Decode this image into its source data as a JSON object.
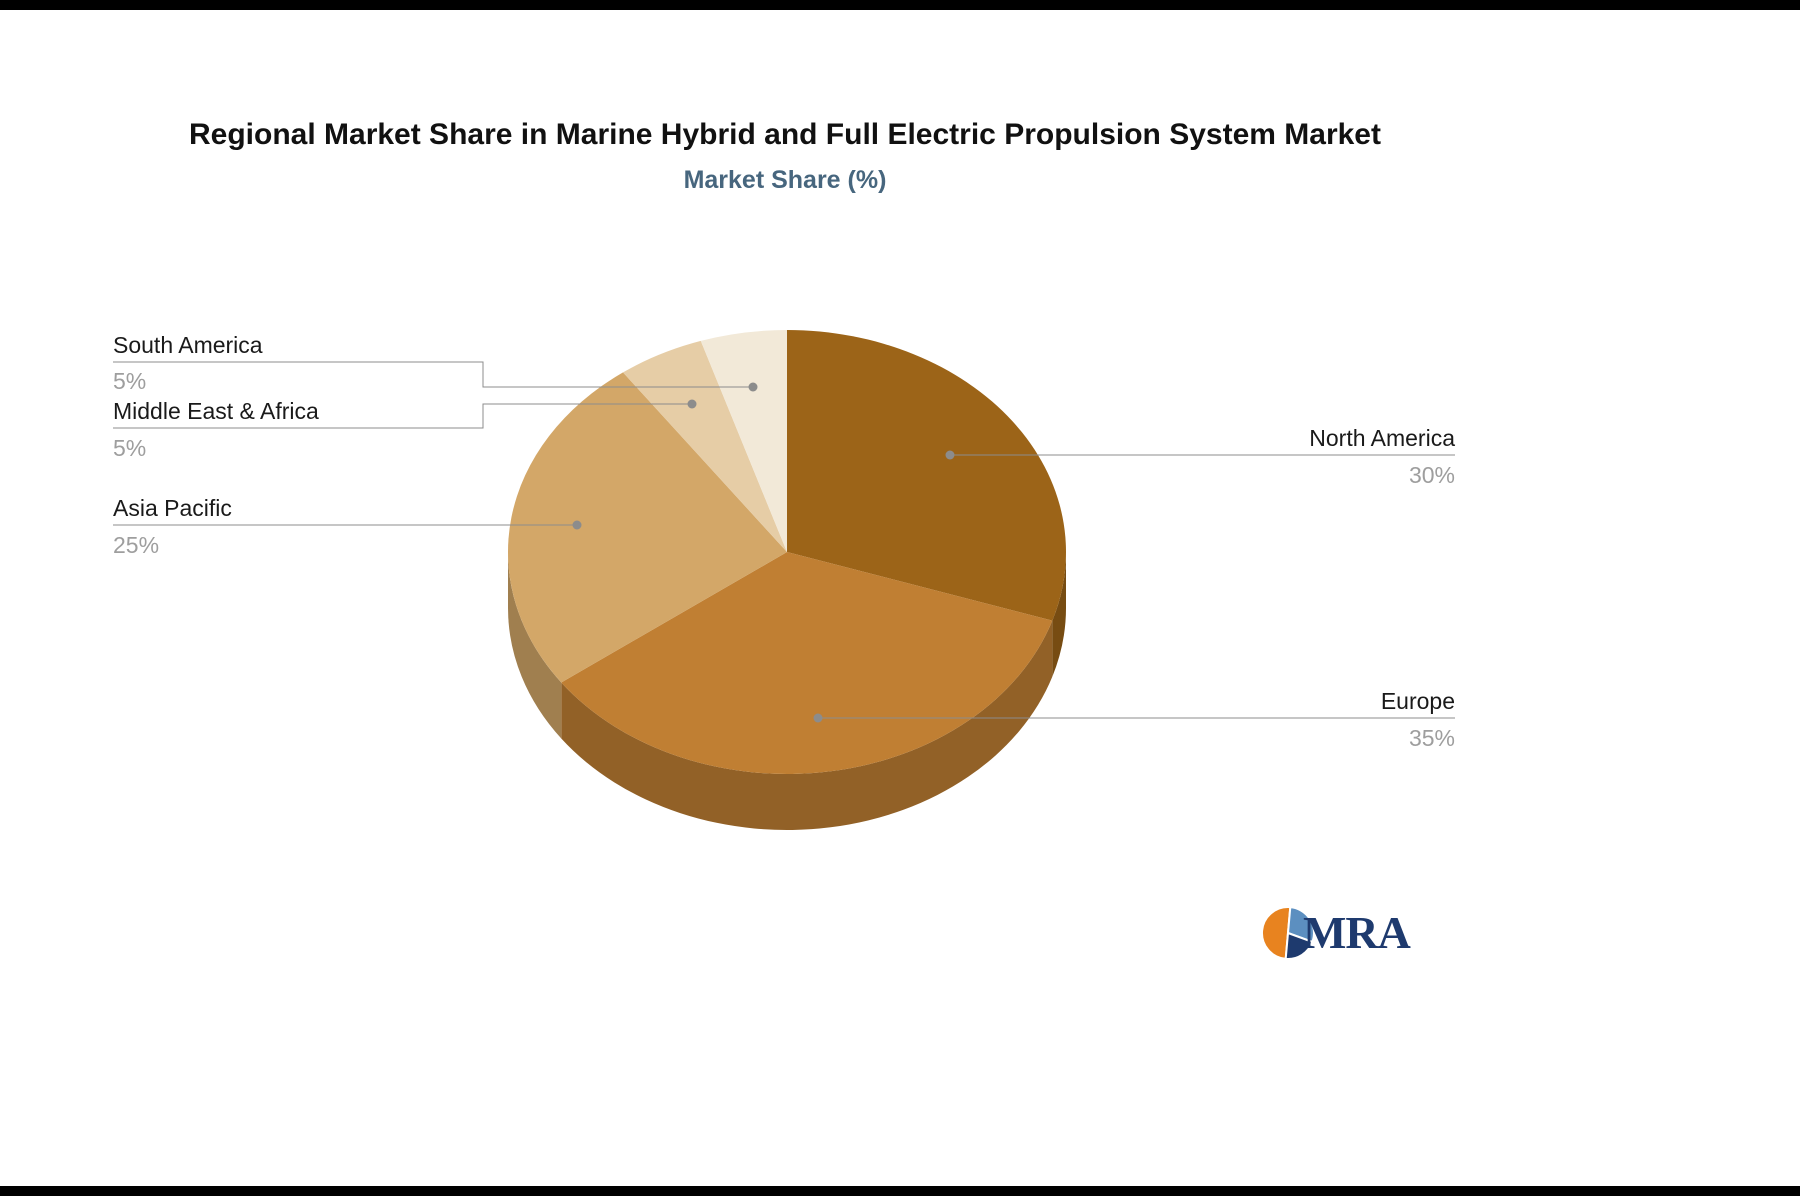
{
  "chart_data": {
    "type": "pie",
    "title": "Regional Market Share in Marine Hybrid and Full Electric Propulsion System Market",
    "subtitle": "Market Share (%)",
    "unit": "%",
    "categories": [
      "North America",
      "Europe",
      "Asia Pacific",
      "Middle East & Africa",
      "South America"
    ],
    "values": [
      30,
      35,
      25,
      5,
      5
    ],
    "colors": [
      "#9c6418",
      "#c07f33",
      "#d3a768",
      "#e6cda6",
      "#f2e9d8"
    ],
    "start_angle_deg": -90,
    "direction": "clockwise",
    "style_3d": true,
    "legend_position": "none",
    "label_style": "callout-lines"
  },
  "logo": {
    "text": "MRA"
  },
  "colors": {
    "background": "#ffffff",
    "frame_bar": "#000000",
    "title_text": "#111111",
    "subtitle_text": "#47667e",
    "label_text": "#1a1a1a",
    "value_text": "#9e9e9e",
    "leader_line": "#8c8c8c",
    "logo_orange": "#e8831f",
    "logo_blue": "#5c8fc0",
    "logo_navy": "#1e3a6e"
  }
}
